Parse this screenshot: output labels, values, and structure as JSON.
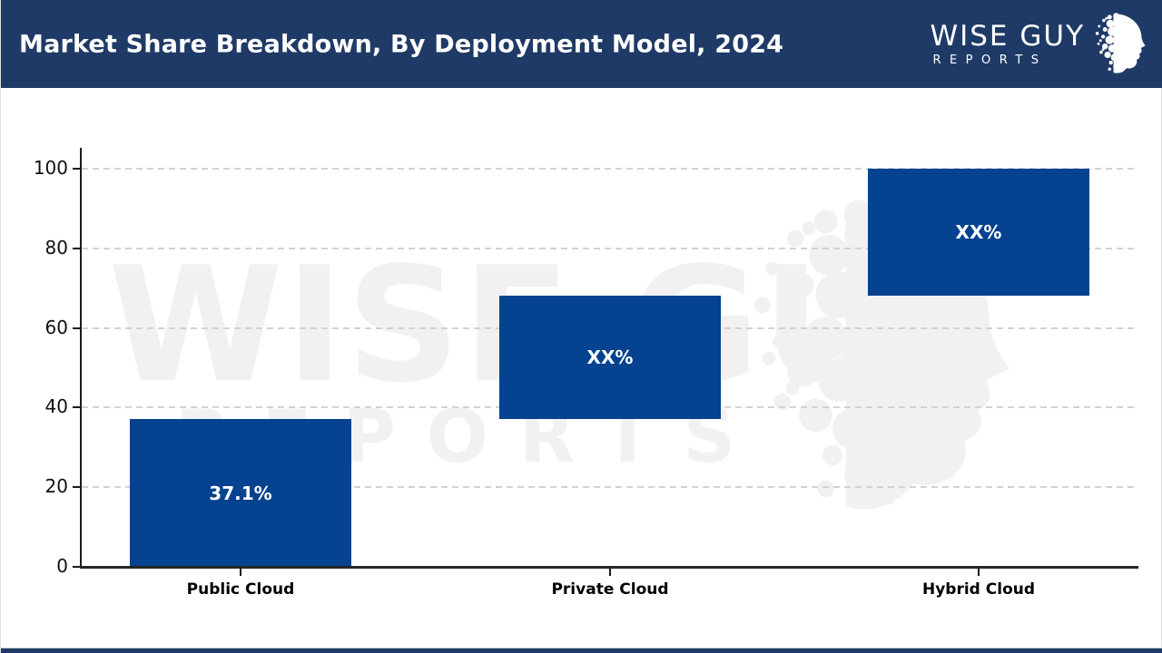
{
  "header": {
    "title": "Market Share Breakdown, By Deployment Model, 2024",
    "logo": {
      "line1": "WISE GUY",
      "line2": "REPORTS"
    }
  },
  "watermark": {
    "line1": "WISE GUY",
    "line2": "REPORTS"
  },
  "chart_data": {
    "type": "bar",
    "subtype": "waterfall-floating-bars",
    "title": "Market Share Breakdown, By Deployment Model, 2024",
    "categories": [
      "Public Cloud",
      "Private Cloud",
      "Hybrid Cloud"
    ],
    "segments": [
      {
        "category": "Public Cloud",
        "start": 0,
        "end": 37.1,
        "label": "37.1%"
      },
      {
        "category": "Private Cloud",
        "start": 37.1,
        "end": 68,
        "label": "XX%"
      },
      {
        "category": "Hybrid Cloud",
        "start": 68,
        "end": 100,
        "label": "XX%"
      }
    ],
    "xlabel": "",
    "ylabel": "",
    "yticks": [
      0,
      20,
      40,
      60,
      80,
      100
    ],
    "ylim": [
      0,
      105
    ],
    "grid": "dashed-horizontal",
    "legend": "none",
    "bar_color": "#05428F",
    "label_color": "#FFFFFF"
  },
  "colors": {
    "header_bg": "#1F3A66",
    "bar": "#05428F",
    "bar_label": "#FFFFFF",
    "grid": "#D2D2D2",
    "axis": "#1A1A1A",
    "watermark": "#F1F1F4",
    "footer_bar": "#1F3A66"
  }
}
